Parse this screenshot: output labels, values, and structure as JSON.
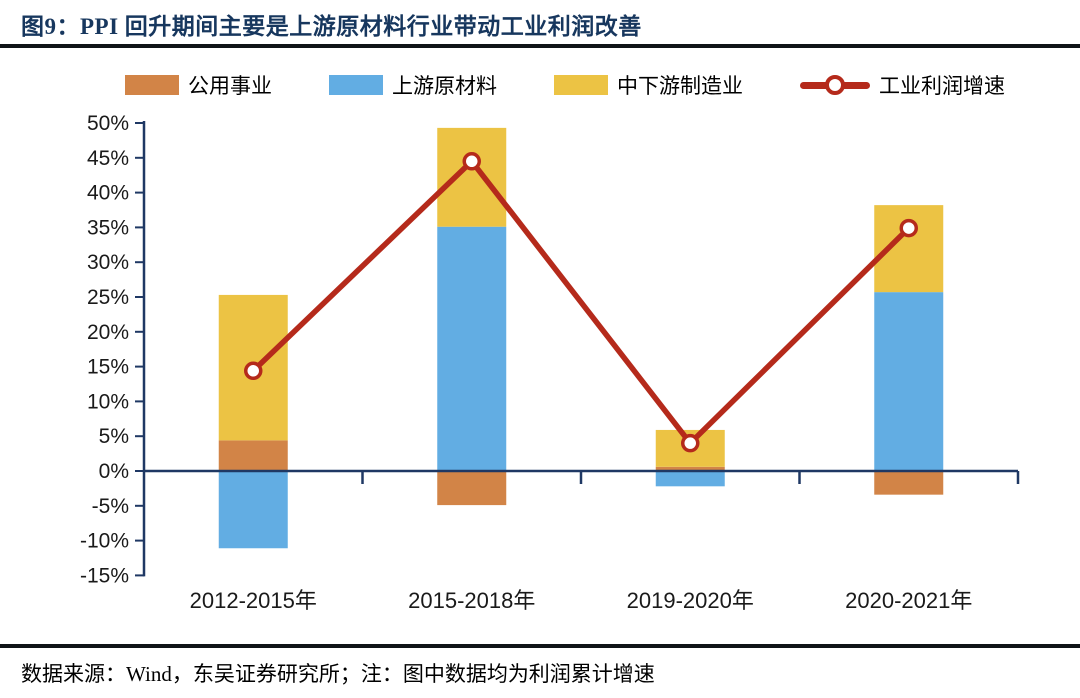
{
  "header": {
    "title": "图9：PPI 回升期间主要是上游原材料行业带动工业利润改善"
  },
  "footer": {
    "note": "数据来源：Wind，东吴证券研究所；注：图中数据均为利润累计增速"
  },
  "colors": {
    "title": "#17375E",
    "axis": "#1F3864",
    "divider": "#101418",
    "utilities": "#D28447",
    "upstream": "#62ADE3",
    "midstream": "#ECC344",
    "profit_line": "#B52A1B",
    "tick_label": "#1a1a1a"
  },
  "chart_data": {
    "type": "bar",
    "subtype": "stacked-bar-with-line",
    "categories": [
      "2012-2015年",
      "2015-2018年",
      "2019-2020年",
      "2020-2021年"
    ],
    "series": [
      {
        "name": "公用事业",
        "type": "bar",
        "color": "#D28447",
        "values": [
          4.4,
          -4.9,
          0.6,
          -3.4
        ]
      },
      {
        "name": "上游原材料",
        "type": "bar",
        "color": "#62ADE3",
        "values": [
          -11.1,
          35.1,
          -2.2,
          25.7
        ]
      },
      {
        "name": "中下游制造业",
        "type": "bar",
        "color": "#ECC344",
        "values": [
          20.9,
          14.2,
          5.3,
          12.5
        ]
      },
      {
        "name": "工业利润增速",
        "type": "line",
        "color": "#B52A1B",
        "marker": "open-circle",
        "values": [
          14.4,
          44.5,
          4.0,
          34.9
        ]
      }
    ],
    "title": "",
    "xlabel": "",
    "ylabel": "",
    "ylim": [
      -15,
      50
    ],
    "ytick_step": 5,
    "ytick_suffix": "%",
    "grid": false,
    "legend_position": "top",
    "stacking": "positive-up-negative-down"
  }
}
